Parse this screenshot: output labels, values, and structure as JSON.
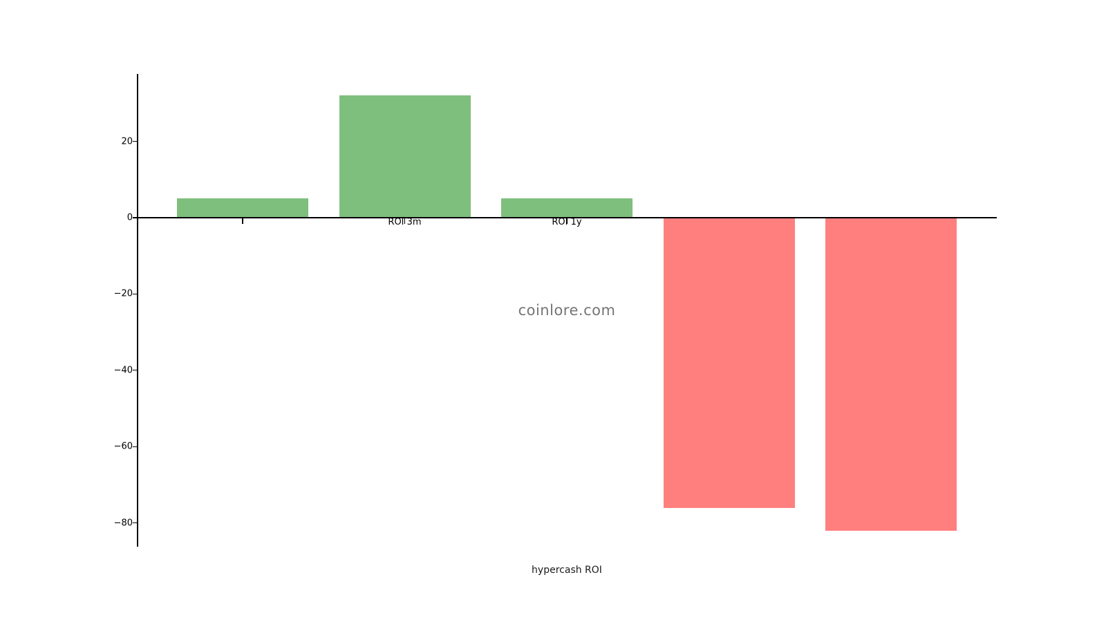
{
  "page": {
    "background": "#ffffff"
  },
  "chart_data": {
    "type": "bar",
    "title": "",
    "xlabel": "hypercash ROI",
    "ylabel": "",
    "watermark": "coinlore.com",
    "categories": [
      "",
      "ROI 3m",
      "ROI 1y",
      "",
      ""
    ],
    "values": [
      5,
      32,
      5,
      -76,
      -82
    ],
    "series": [
      {
        "name": "hypercash ROI",
        "values": [
          5,
          32,
          5,
          -76,
          -82
        ]
      }
    ],
    "ylim": [
      -86,
      38
    ],
    "y_ticks": [
      {
        "label": "20",
        "value": 20
      },
      {
        "label": "0",
        "value": 0
      },
      {
        "label": "−20",
        "value": -20
      },
      {
        "label": "−40",
        "value": -40
      },
      {
        "label": "−60",
        "value": -60
      },
      {
        "label": "−80",
        "value": -80
      }
    ],
    "x_ticks": [
      {
        "label": "",
        "bar_index": 0
      },
      {
        "label": "ROI 3m",
        "bar_index": 1
      },
      {
        "label": "ROI 1y",
        "bar_index": 2
      }
    ],
    "legend_position": "none",
    "grid": false,
    "colors": {
      "positive_bar": "#7ebf7e",
      "negative_bar": "#ff7f7f",
      "axis": "#000000",
      "tick_label": "#000000",
      "watermark": "#757575",
      "xlabel_text": "#1a1a1a",
      "background": "#ffffff"
    }
  }
}
